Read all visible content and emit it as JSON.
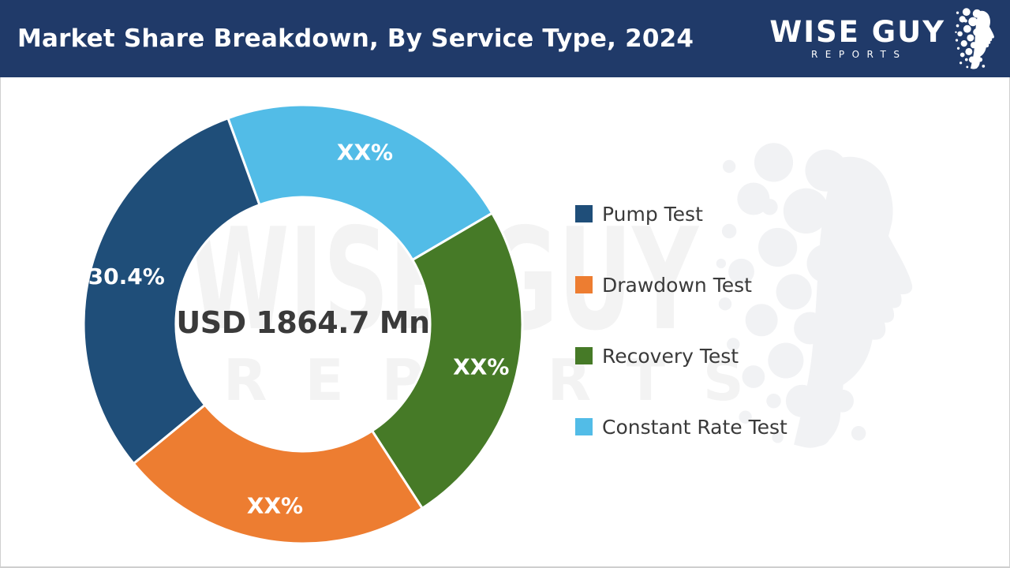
{
  "header": {
    "title": "Market Share Breakdown, By Service Type, 2024",
    "logo": {
      "line1": "WISE GUY",
      "line2": "REPORTS"
    }
  },
  "watermark": {
    "line1": "WISE GUY",
    "line2": "REPORTS"
  },
  "chart_data": {
    "type": "donut",
    "title": "Market Share Breakdown, By Service Type, 2024",
    "center_label": "USD 1864.7 Mn",
    "start_angle_deg": 340,
    "outer_radius_px": 278,
    "inner_radius_px": 161,
    "segments_clockwise": [
      {
        "label": "Constant Rate Test",
        "value_pct": 22.1,
        "display_label": "XX%",
        "color": "#52BCE7"
      },
      {
        "label": "Recovery Test",
        "value_pct": 24.3,
        "display_label": "XX%",
        "color": "#467A27"
      },
      {
        "label": "Drawdown Test",
        "value_pct": 23.2,
        "display_label": "XX%",
        "color": "#ED7D31"
      },
      {
        "label": "Pump Test",
        "value_pct": 30.4,
        "display_label": "30.4%",
        "color": "#1F4E79"
      }
    ],
    "legend": [
      {
        "label": "Pump Test",
        "color": "#1F4E79"
      },
      {
        "label": "Drawdown Test",
        "color": "#ED7D31"
      },
      {
        "label": "Recovery Test",
        "color": "#467A27"
      },
      {
        "label": "Constant Rate Test",
        "color": "#52BCE7"
      }
    ],
    "legend_position": "right"
  }
}
